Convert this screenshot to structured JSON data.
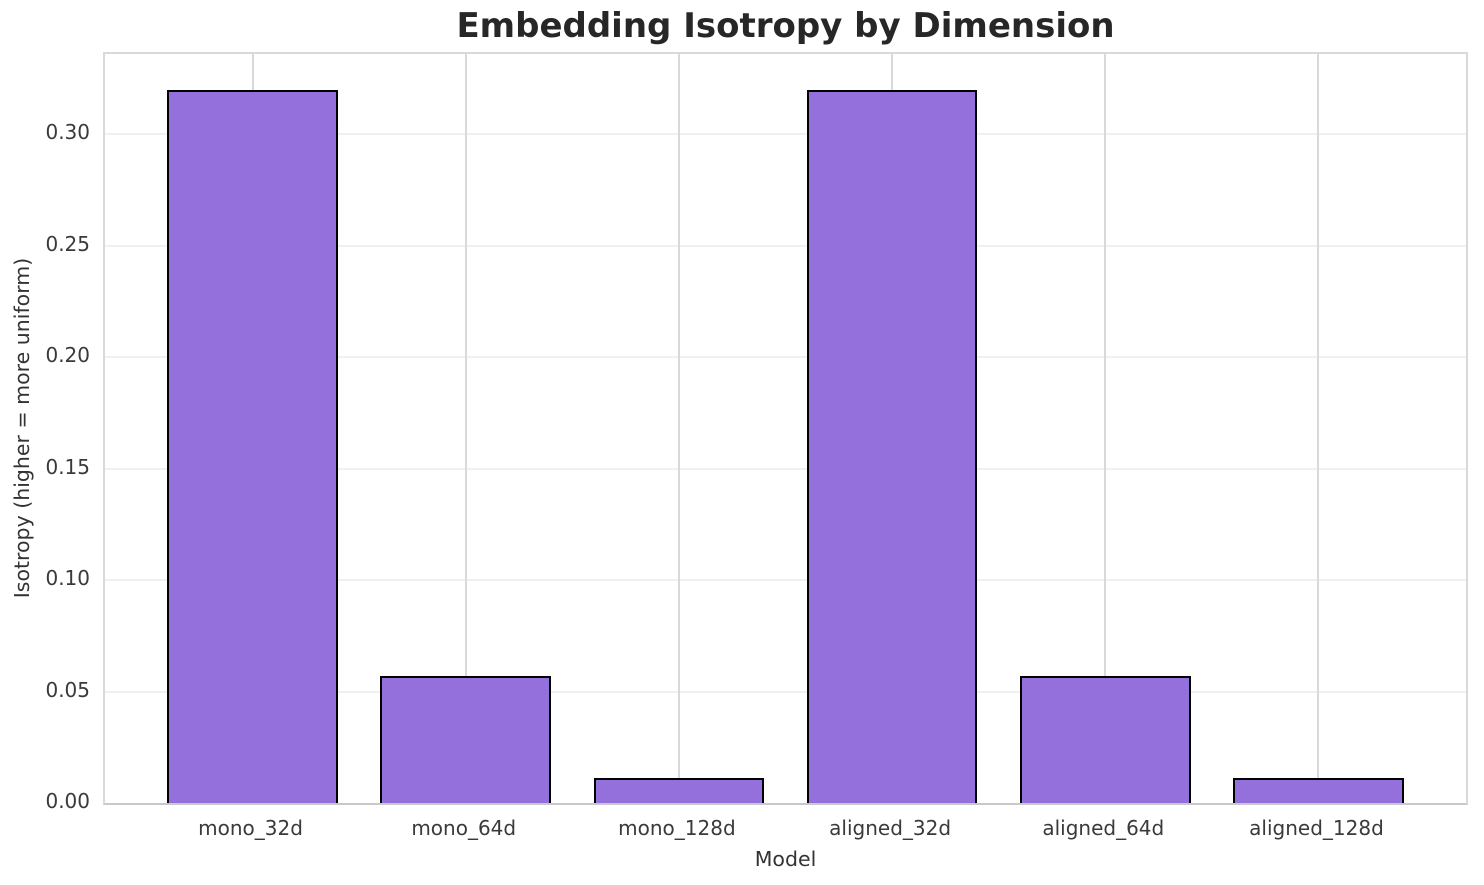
{
  "chart_data": {
    "type": "bar",
    "title": "Embedding Isotropy by Dimension",
    "xlabel": "Model",
    "ylabel": "Isotropy (higher = more uniform)",
    "categories": [
      "mono_32d",
      "mono_64d",
      "mono_128d",
      "aligned_32d",
      "aligned_64d",
      "aligned_128d"
    ],
    "values": [
      0.32,
      0.057,
      0.011,
      0.32,
      0.057,
      0.011
    ],
    "yticks": [
      0.0,
      0.05,
      0.1,
      0.15,
      0.2,
      0.25,
      0.3
    ],
    "ytick_labels": [
      "0.00",
      "0.05",
      "0.10",
      "0.15",
      "0.20",
      "0.25",
      "0.30"
    ],
    "ylim": [
      0,
      0.336
    ],
    "xlim": [
      -0.692,
      5.692
    ],
    "bar_width": 0.8,
    "bar_color": "#9370DB",
    "bar_edge_color": "#000000",
    "grid": true,
    "grid_color_vertical": "#d9d9d9",
    "grid_color_horizontal": "#f0f0f0",
    "legend": "none"
  }
}
